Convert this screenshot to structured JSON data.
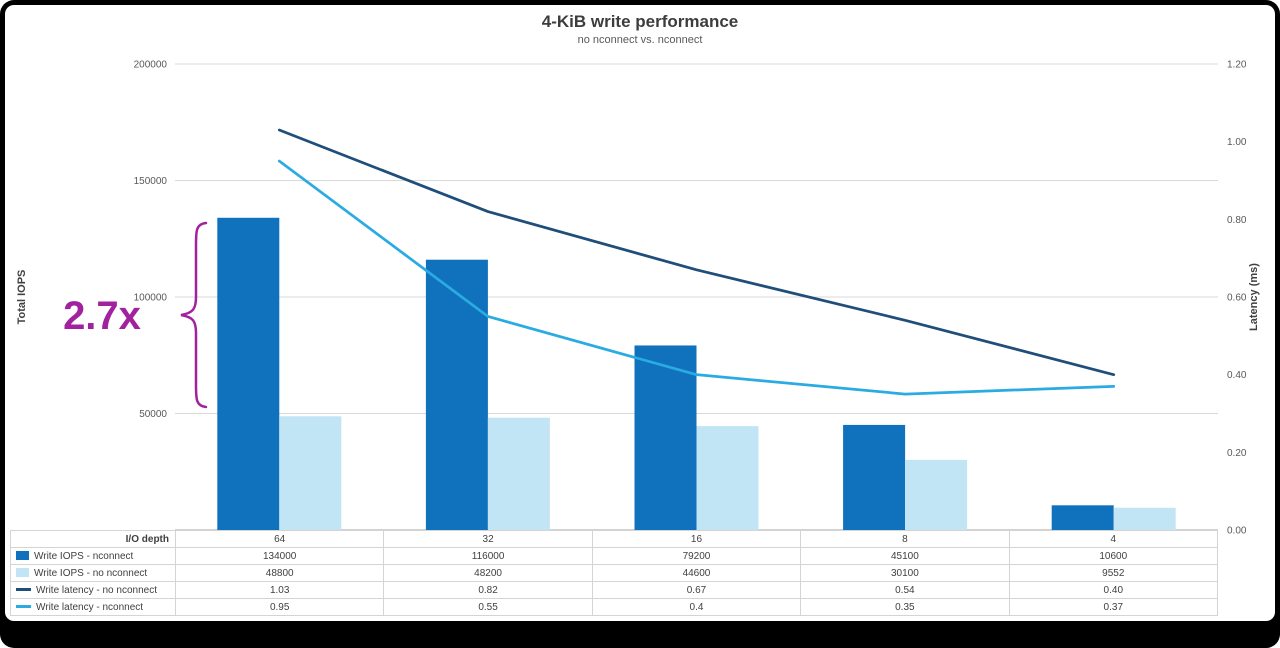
{
  "title": "4-KiB write performance",
  "subtitle": "no nconnect vs. nconnect",
  "left_axis": {
    "title": "Total IOPS",
    "max": 200000,
    "ticks": [
      200000,
      150000,
      100000,
      50000
    ]
  },
  "right_axis": {
    "title": "Latency (ms)",
    "max": 1.2,
    "ticks": [
      "1.20",
      "1.00",
      "0.80",
      "0.60",
      "0.40",
      "0.20",
      "0.00"
    ]
  },
  "annotation": {
    "text": "2.7x",
    "color": "#a1219e"
  },
  "colors": {
    "bar_nconnect": "#1071bc",
    "bar_no_nconnect": "#c2e5f5",
    "line_no_nconnect": "#1f4e7a",
    "line_nconnect": "#2aabe2",
    "gridline": "#d9d9d9",
    "axis_line": "#a6a6a6"
  },
  "chart_data": {
    "type": "combo",
    "categories": [
      "64",
      "32",
      "16",
      "8",
      "4"
    ],
    "x_title": "I/O depth",
    "left_axis": {
      "label": "Total IOPS",
      "range": [
        0,
        200000
      ]
    },
    "right_axis": {
      "label": "Latency (ms)",
      "range": [
        0,
        1.2
      ]
    },
    "grid": true,
    "legend_position": "table-left",
    "series": [
      {
        "name": "Write IOPS - nconnect",
        "type": "bar",
        "axis": "left",
        "color": "#1071bc",
        "values": [
          134000,
          116000,
          79200,
          45100,
          10600
        ]
      },
      {
        "name": "Write IOPS - no nconnect",
        "type": "bar",
        "axis": "left",
        "color": "#c2e5f5",
        "values": [
          48800,
          48200,
          44600,
          30100,
          9552
        ]
      },
      {
        "name": "Write latency - no nconnect",
        "type": "line",
        "axis": "right",
        "color": "#1f4e7a",
        "values": [
          1.03,
          0.82,
          0.67,
          0.54,
          0.4
        ]
      },
      {
        "name": "Write latency - nconnect",
        "type": "line",
        "axis": "right",
        "color": "#2aabe2",
        "values": [
          0.95,
          0.55,
          0.4,
          0.35,
          0.37
        ]
      }
    ]
  },
  "table": {
    "header_label": "I/O depth",
    "rows": [
      {
        "label": "Write IOPS - nconnect",
        "swatch": "bar",
        "color": "#1071bc",
        "values": [
          "134000",
          "116000",
          "79200",
          "45100",
          "10600"
        ]
      },
      {
        "label": "Write IOPS - no nconnect",
        "swatch": "bar",
        "color": "#c2e5f5",
        "values": [
          "48800",
          "48200",
          "44600",
          "30100",
          "9552"
        ]
      },
      {
        "label": "Write latency - no nconnect",
        "swatch": "line",
        "color": "#1f4e7a",
        "values": [
          "1.03",
          "0.82",
          "0.67",
          "0.54",
          "0.40"
        ]
      },
      {
        "label": "Write latency - nconnect",
        "swatch": "line",
        "color": "#2aabe2",
        "values": [
          "0.95",
          "0.55",
          "0.4",
          "0.35",
          "0.37"
        ]
      }
    ]
  }
}
